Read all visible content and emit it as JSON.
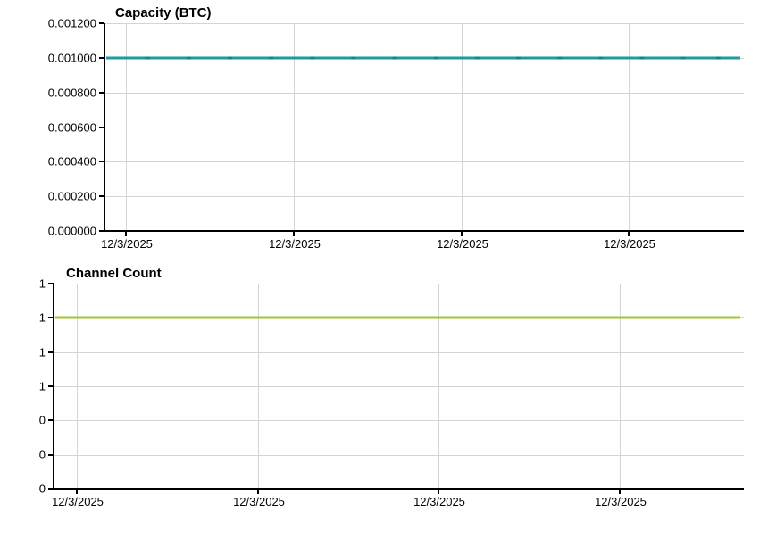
{
  "page": {
    "background_color": "#ffffff",
    "text_color": "#000000",
    "gridline_color": "#d4d4d4",
    "axis_color": "#000000"
  },
  "chart_data": [
    {
      "type": "line",
      "title": "Capacity (BTC)",
      "xlabel": "",
      "ylabel": "",
      "x_tick_labels": [
        "12/3/2025",
        "12/3/2025",
        "12/3/2025",
        "12/3/2025"
      ],
      "ylim": [
        0,
        0.0012
      ],
      "y_tick_values": [
        0,
        0.0002,
        0.0004,
        0.0006,
        0.0008,
        0.001,
        0.0012
      ],
      "y_tick_labels": [
        "0.000000",
        "0.000200",
        "0.000400",
        "0.000600",
        "0.000800",
        "0.001000",
        "0.001200"
      ],
      "grid": true,
      "legend": false,
      "series": [
        {
          "name": "Capacity (BTC)",
          "color": "#1e9aa0",
          "marker_color": "#13848b",
          "point_markers": true,
          "shape": "constant-horizontal-line",
          "value": 0.001
        }
      ]
    },
    {
      "type": "line",
      "title": "Channel Count",
      "xlabel": "",
      "ylabel": "",
      "x_tick_labels": [
        "12/3/2025",
        "12/3/2025",
        "12/3/2025",
        "12/3/2025"
      ],
      "ylim": [
        0,
        1.2
      ],
      "y_tick_values": [
        0,
        0.2,
        0.4,
        0.6,
        0.8,
        1.0,
        1.2
      ],
      "y_tick_labels": [
        "0",
        "0",
        "0",
        "1",
        "1",
        "1",
        "1"
      ],
      "grid": true,
      "legend": false,
      "series": [
        {
          "name": "Channel Count",
          "color": "#9cc72f",
          "point_markers": false,
          "shape": "constant-horizontal-line",
          "value": 1
        }
      ]
    }
  ]
}
